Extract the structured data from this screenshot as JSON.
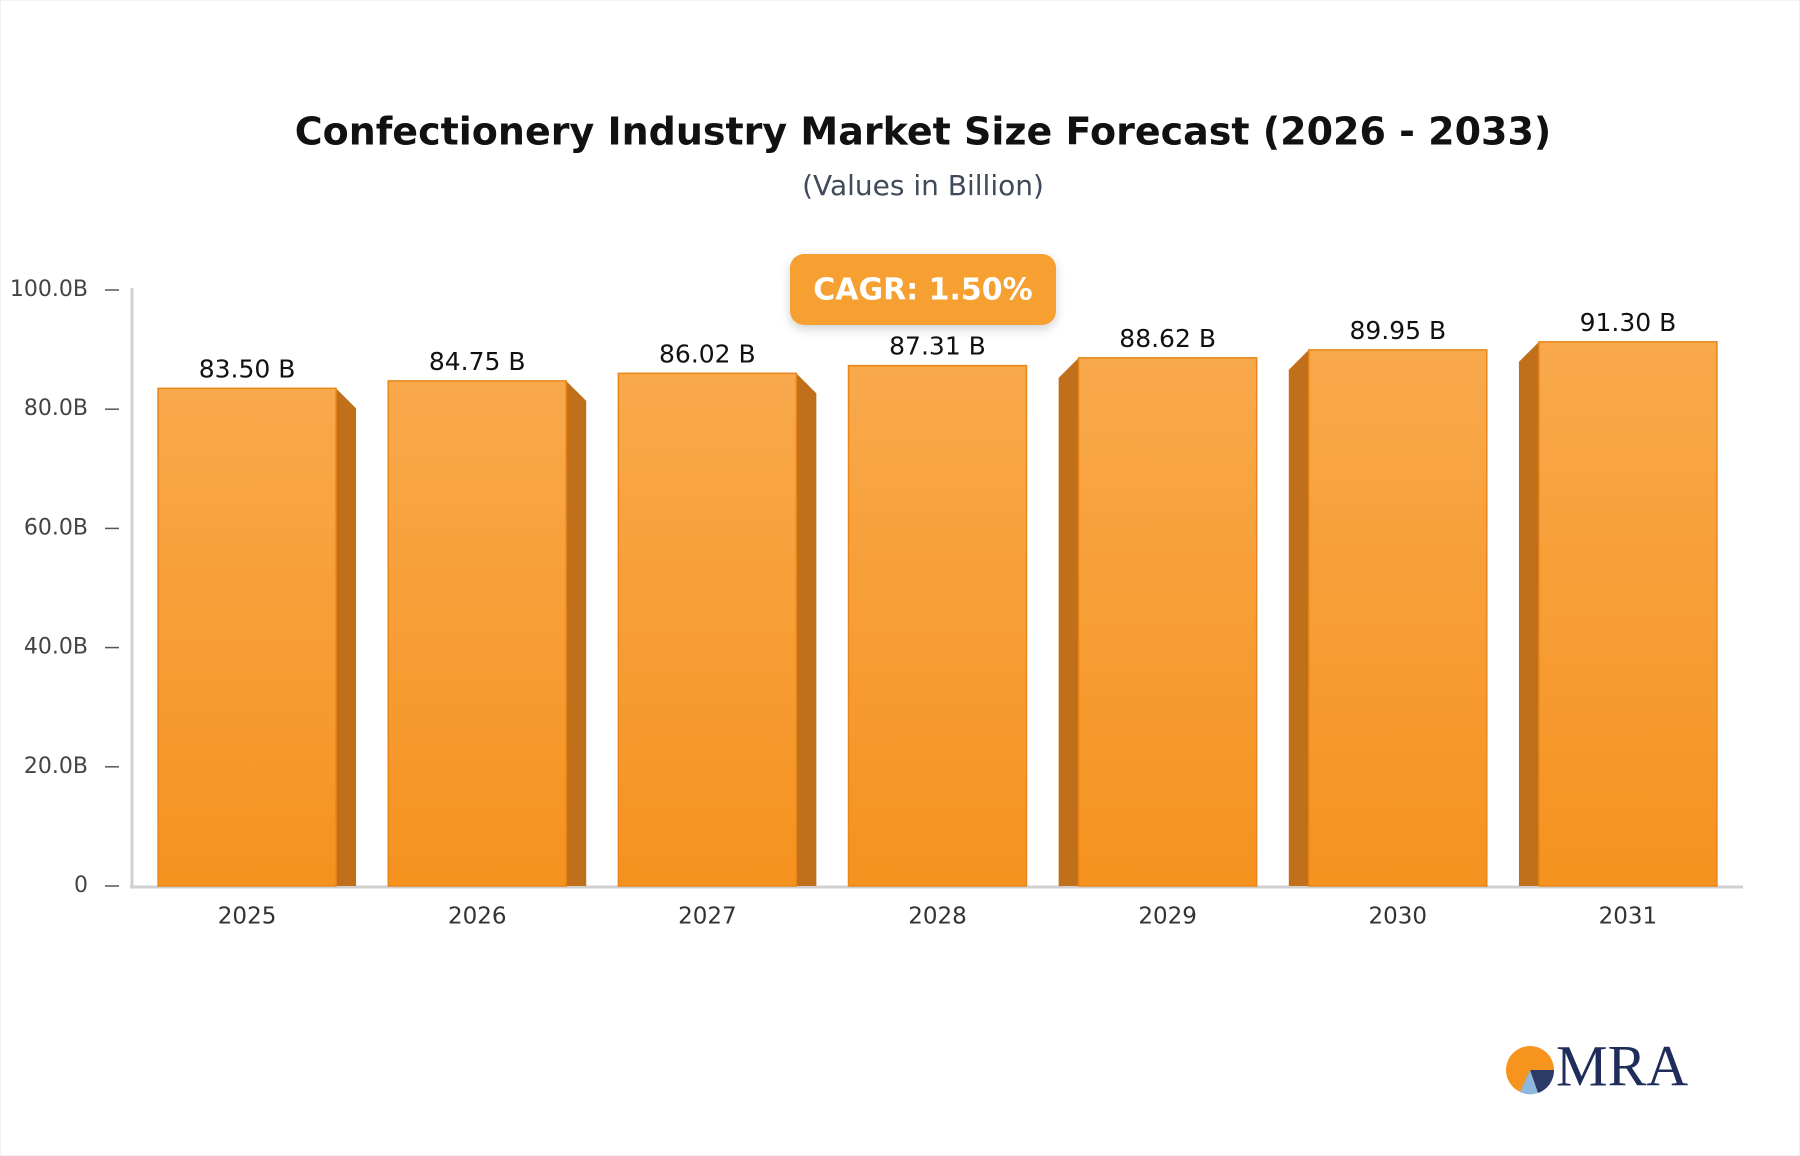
{
  "chart_data": {
    "type": "bar",
    "title": "Confectionery Industry Market Size Forecast (2026 - 2033)",
    "subtitle": "(Values in Billion)",
    "annotation": "CAGR: 1.50%",
    "categories": [
      "2025",
      "2026",
      "2027",
      "2028",
      "2029",
      "2030",
      "2031"
    ],
    "values": [
      83.5,
      84.75,
      86.02,
      87.31,
      88.62,
      89.95,
      91.3
    ],
    "value_labels": [
      "83.50 B",
      "84.75 B",
      "86.02 B",
      "87.31 B",
      "88.62 B",
      "89.95 B",
      "91.30 B"
    ],
    "color": "#f6981f",
    "ylim": [
      0,
      100
    ],
    "yticks": [
      0,
      {
        "value": 20,
        "label": "20.0B"
      },
      {
        "value": 40,
        "label": "40.0B"
      },
      {
        "value": 60,
        "label": "60.0B"
      },
      {
        "value": 80,
        "label": "80.0B"
      },
      {
        "value": 100,
        "label": "100.0B"
      }
    ],
    "grid": false,
    "logo": "MRA"
  }
}
